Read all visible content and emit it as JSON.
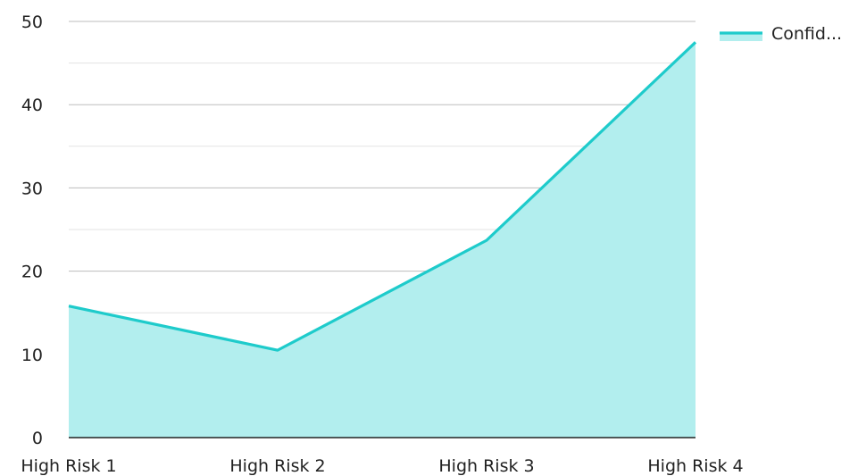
{
  "chart_data": {
    "type": "area",
    "title": "",
    "xlabel": "",
    "ylabel": "",
    "categories": [
      "High Risk 1",
      "High Risk 2",
      "High Risk 3",
      "High Risk 4"
    ],
    "series": [
      {
        "name": "Confid...",
        "values": [
          15.8,
          10.5,
          23.7,
          47.5
        ]
      }
    ],
    "ylim": [
      0,
      50
    ],
    "yticks": [
      0,
      10,
      20,
      30,
      40,
      50
    ],
    "y_tick_labels": [
      "0",
      "10",
      "20",
      "30",
      "40",
      "50"
    ],
    "grid": true,
    "minor_grid": true,
    "legend_position": "top-right",
    "colors": {
      "line": "#1ecbcb",
      "fill": "#b2eeee",
      "major_grid": "#bdbdbd",
      "minor_grid": "#e3e3e3",
      "axis": "#222222"
    }
  }
}
